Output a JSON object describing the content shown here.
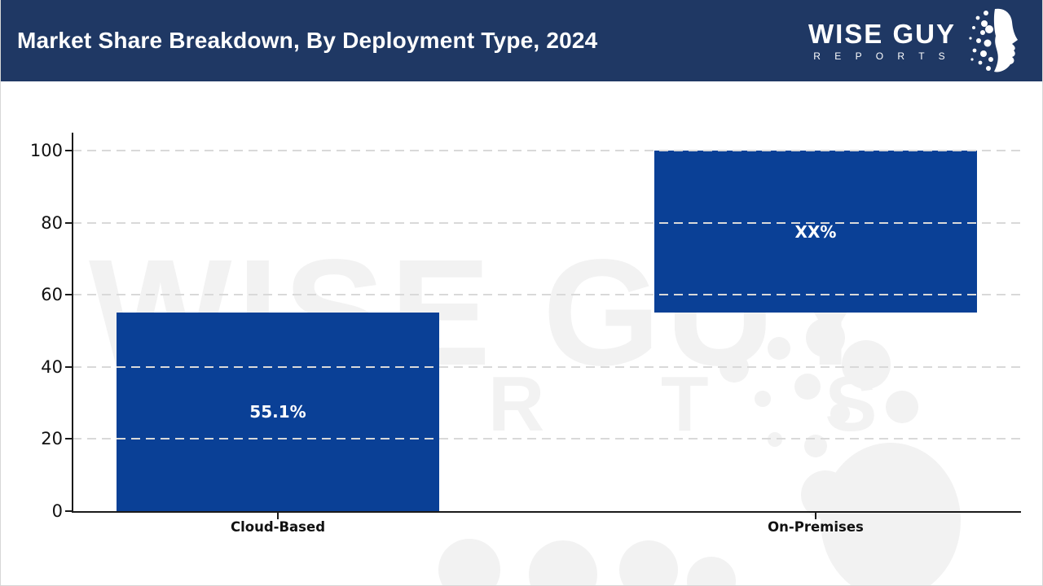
{
  "header": {
    "title": "Market Share Breakdown, By Deployment Type, 2024",
    "bg_color": "#1f3864",
    "logo": {
      "name": "WISE GUY",
      "subtitle": "R E P O R T S"
    }
  },
  "watermark": {
    "line1": "WISE GUY",
    "line2": "R T S"
  },
  "chart_data": {
    "type": "bar",
    "title": "Market Share Breakdown, By Deployment Type, 2024",
    "categories": [
      "Cloud-Based",
      "On-Premises"
    ],
    "bars": [
      {
        "category": "Cloud-Based",
        "start": 0,
        "end": 55.1,
        "value_label": "55.1%"
      },
      {
        "category": "On-Premises",
        "start": 55.1,
        "end": 100,
        "value_label": "XX%"
      }
    ],
    "yticks": [
      0,
      20,
      40,
      60,
      80,
      100
    ],
    "ylim": [
      0,
      105
    ],
    "bar_color": "#0a4096",
    "value_label_color": "#ffffff",
    "grid": {
      "horizontal": true,
      "style": "dashed",
      "color": "#d9d9d9"
    },
    "axis_color": "#1a1a1a",
    "legend": "none"
  }
}
